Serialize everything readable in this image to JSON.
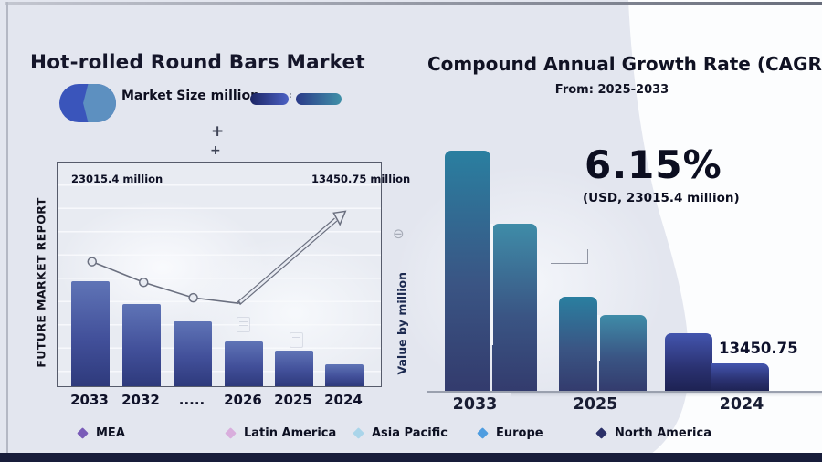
{
  "header": {
    "title": "Hot-rolled Round Bars Market",
    "series_label": "Market Size million",
    "ratio_separator": ":"
  },
  "cagr": {
    "title": "Compound Annual Growth Rate (CAGR)",
    "subtitle": "From: 2025-2033",
    "value": "6.15%",
    "value_note": "(USD, 23015.4 million)"
  },
  "decorations": {
    "plus_top": "+",
    "plus_bottom": "+",
    "minus_circle": "⊖"
  },
  "chart_data": [
    {
      "id": "market-size-by-year",
      "type": "bar",
      "title": "Hot-rolled Round Bars Market",
      "series_label": "Market Size million",
      "categories": [
        "2033",
        "2032",
        ".....",
        "2026",
        "2025",
        "2024"
      ],
      "values_rel_height": [
        0.47,
        0.37,
        0.29,
        0.2,
        0.16,
        0.1
      ],
      "labeled_values": {
        "2033": "23015.4 million",
        "2024": "13450.75 million"
      },
      "annotation_top_left": "23015.4 million",
      "annotation_top_right": "13450.75 million",
      "ylabel": "Value by million",
      "side_label": "FUTURE MARKET REPORT",
      "xlabel": "",
      "grid": true,
      "trend_line": {
        "description": "declining line with circle markers from 2033 to 2026, then outlined arrow rising to upper right",
        "points_rel": [
          [
            0.107,
            0.445
          ],
          [
            0.267,
            0.538
          ],
          [
            0.421,
            0.607
          ],
          [
            0.562,
            0.632
          ]
        ],
        "marker_count": 3,
        "arrow_tip_rel": [
          0.893,
          0.219
        ]
      }
    },
    {
      "id": "cagr-regional-bars",
      "type": "bar",
      "categories": [
        "2033",
        "2025",
        "2024"
      ],
      "series": [
        {
          "name": "bar-front",
          "values_rel_height": [
            1.0,
            0.394,
            0.242
          ]
        },
        {
          "name": "bar-back",
          "values_rel_height": [
            0.697,
            0.318,
            0.117
          ]
        }
      ],
      "data_labels": [
        {
          "category": "2024",
          "text": "13450.75"
        }
      ],
      "legend_entries": [
        "MEA",
        "Latin America",
        "Asia Pacific",
        "Europe",
        "North America"
      ],
      "legend_position": "bottom"
    }
  ],
  "legend": {
    "items": [
      {
        "label": "MEA",
        "color": "#7a5cb8"
      },
      {
        "label": "Latin America",
        "color": "#d9aedd"
      },
      {
        "label": "Asia Pacific",
        "color": "#aad5ea"
      },
      {
        "label": "Europe",
        "color": "#4f9de0"
      },
      {
        "label": "North America",
        "color": "#2b3068"
      }
    ]
  },
  "colors": {
    "canvas_bg": "#e3e6ef",
    "panel_white": "#fcfdfe",
    "left_bar_top": "#5f74b6",
    "left_bar_mid": "#42509a",
    "left_bar_bottom": "#2e3a7c",
    "teal_bar_top": "#2a7fa0",
    "teal_bar2_top": "#3f8ca8",
    "teal_bar_bottom": "#333b6d",
    "blue_bar_top": "#4355ae",
    "blue_bar_bottom": "#1d2252",
    "bottom_strip": "#181d3a",
    "pill_left_start": "#1c2564",
    "pill_left_end": "#4c61c4",
    "pill_right_start": "#2b3a88",
    "pill_right_end": "#4090a8",
    "cylinder_dark": "#3a55bb",
    "cylinder_light": "#5d90c0",
    "trend_stroke": "#6b7080"
  }
}
